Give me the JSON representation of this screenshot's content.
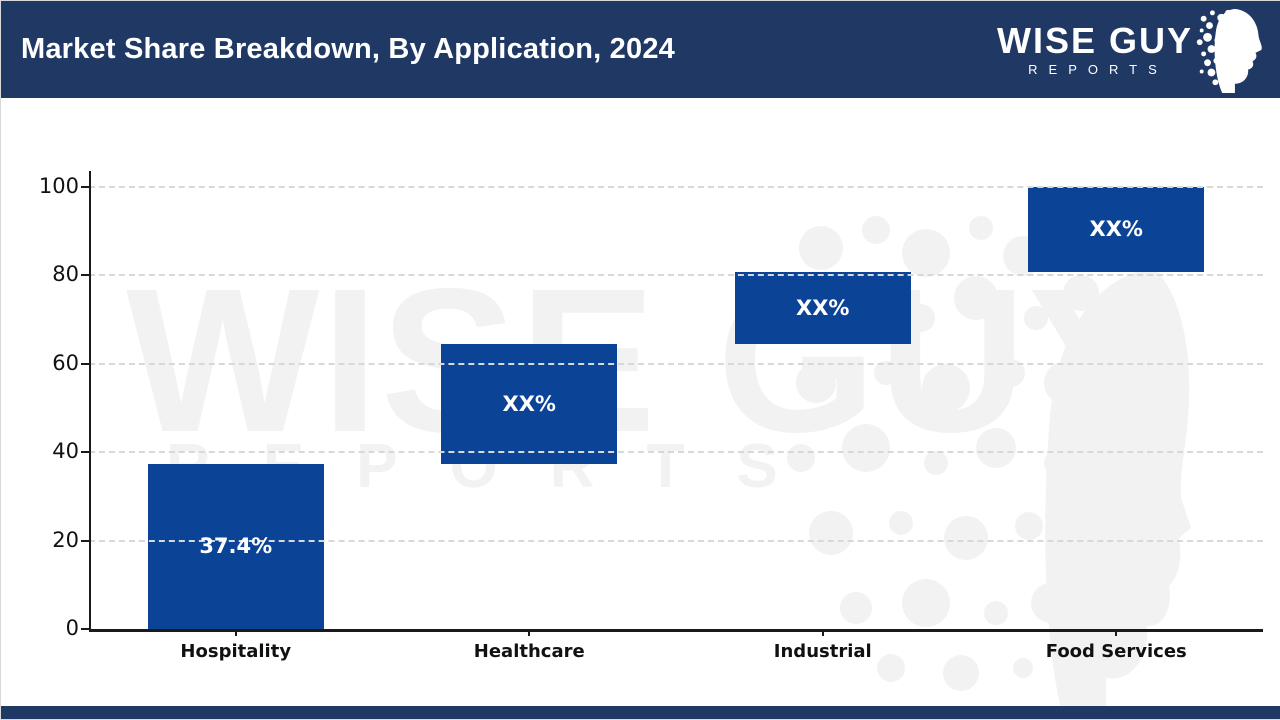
{
  "header": {
    "title": "Market Share Breakdown, By Application, 2024",
    "logo": {
      "line1": "WISE GUY",
      "line2": "REPORTS"
    }
  },
  "watermark": {
    "line1": "WISE GUY",
    "line2": "REPORTS"
  },
  "colors": {
    "header_bg": "#1f3864",
    "footer_bg": "#1f3864",
    "bar": "#0b4397",
    "bar_label": "#ffffff",
    "grid": "#d8d8d8",
    "axis": "#1a1a1a",
    "watermark": "#f2f2f2"
  },
  "chart_data": {
    "type": "bar",
    "subtype": "waterfall",
    "title": "Market Share Breakdown, By Application, 2024",
    "categories": [
      "Hospitality",
      "Healthcare",
      "Industrial",
      "Food Services"
    ],
    "segments": [
      {
        "category": "Hospitality",
        "start": 0,
        "end": 37.4,
        "value": 37.4,
        "label": "37.4%"
      },
      {
        "category": "Healthcare",
        "start": 37.4,
        "end": 64.4,
        "value": 27.0,
        "label": "XX%"
      },
      {
        "category": "Industrial",
        "start": 64.4,
        "end": 80.8,
        "value": 16.4,
        "label": "XX%"
      },
      {
        "category": "Food Services",
        "start": 80.8,
        "end": 100,
        "value": 19.2,
        "label": "XX%"
      }
    ],
    "yticks": [
      0,
      20,
      40,
      60,
      80,
      100
    ],
    "ylim": [
      0,
      104
    ],
    "xlabel": "",
    "ylabel": "",
    "grid": "horizontal-dashed, drawn above bars",
    "legend": "none",
    "bar_color": "#0b4397",
    "bar_label_color": "#ffffff"
  }
}
